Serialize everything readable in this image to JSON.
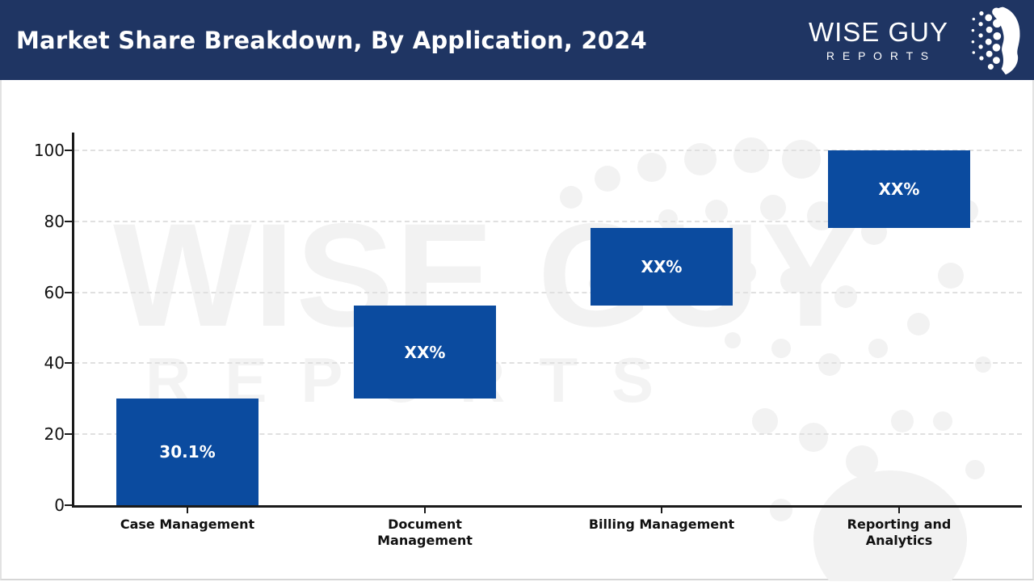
{
  "header": {
    "title": "Market Share Breakdown, By Application, 2024"
  },
  "logo": {
    "line1": "WISE GUY",
    "line2": "R E P O R T S"
  },
  "watermark": {
    "line1": "WISE GUY",
    "line2": "REPORTS"
  },
  "chart_data": {
    "type": "bar",
    "subtype": "waterfall",
    "title": "Market Share Breakdown, By Application, 2024",
    "xlabel": "",
    "ylabel": "",
    "ylim": [
      0,
      100
    ],
    "yticks": [
      0,
      20,
      40,
      60,
      80,
      100
    ],
    "grid": "horizontal-dashed",
    "bar_color": "#0b4b9f",
    "categories": [
      "Case Management",
      "Document Management",
      "Billing Management",
      "Reporting and Analytics"
    ],
    "category_lines": [
      [
        "Case Management"
      ],
      [
        "Document",
        "Management"
      ],
      [
        "Billing Management"
      ],
      [
        "Reporting and",
        "Analytics"
      ]
    ],
    "segments": [
      {
        "category": "Case Management",
        "start": 0,
        "end": 30.1,
        "label": "30.1%"
      },
      {
        "category": "Document Management",
        "start": 30.1,
        "end": 56.2,
        "label": "XX%"
      },
      {
        "category": "Billing Management",
        "start": 56.2,
        "end": 78.2,
        "label": "XX%"
      },
      {
        "category": "Reporting and Analytics",
        "start": 78.2,
        "end": 100,
        "label": "XX%"
      }
    ]
  }
}
